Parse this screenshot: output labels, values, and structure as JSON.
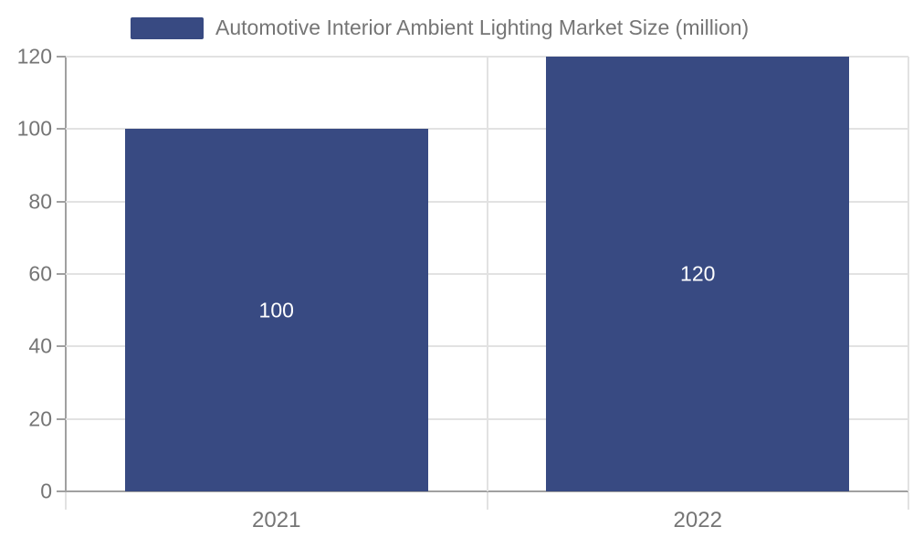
{
  "legend": {
    "label": "Automotive Interior Ambient Lighting Market Size (million)"
  },
  "colors": {
    "bar": "#384A82",
    "axis_line": "#a0a0a0",
    "gridline": "#e2e2e2",
    "tick_label": "#757575",
    "data_label": "#ffffff",
    "background": "#ffffff"
  },
  "chart_data": {
    "type": "bar",
    "title": "",
    "categories": [
      "2021",
      "2022"
    ],
    "series": [
      {
        "name": "Automotive Interior Ambient Lighting Market Size (million)",
        "values": [
          100,
          120
        ],
        "color": "#384A82"
      }
    ],
    "data_labels": [
      "100",
      "120"
    ],
    "xlabel": "",
    "ylabel": "",
    "ylim": [
      0,
      120
    ],
    "yticks": [
      0,
      20,
      40,
      60,
      80,
      100,
      120
    ],
    "grid": true,
    "legend_position": "top-center",
    "bar_label_position": "middle"
  }
}
